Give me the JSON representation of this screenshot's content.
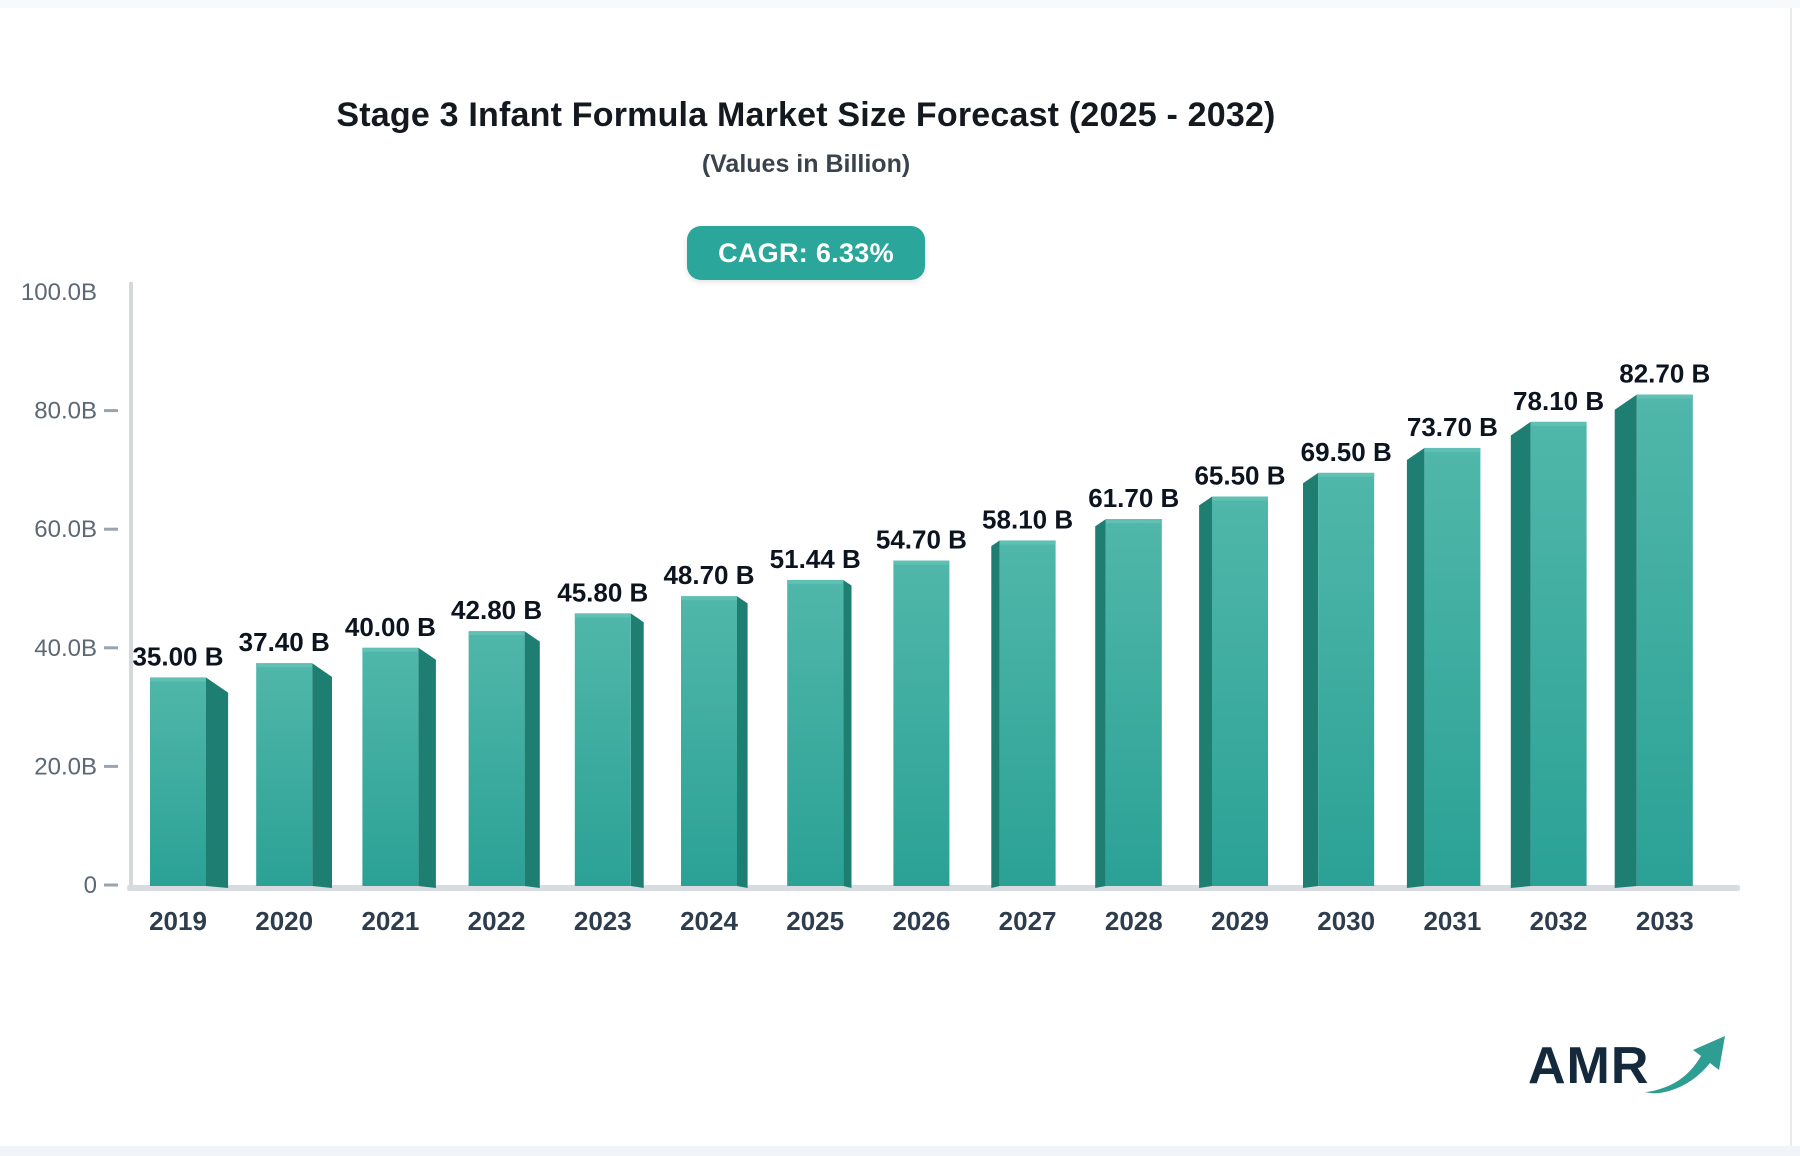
{
  "header": {
    "title": "Stage 3 Infant Formula Market Size Forecast (2025 - 2032)",
    "subtitle": "(Values in Billion)"
  },
  "badge": {
    "label": "CAGR: 6.33%",
    "background": "#2aa79a",
    "text_color": "#ffffff"
  },
  "chart_data": {
    "type": "bar",
    "title": "Stage 3 Infant Formula Market Size Forecast (2025 - 2032)",
    "subtitle": "(Values in Billion)",
    "categories": [
      "2019",
      "2020",
      "2021",
      "2022",
      "2023",
      "2024",
      "2025",
      "2026",
      "2027",
      "2028",
      "2029",
      "2030",
      "2031",
      "2032",
      "2033"
    ],
    "values": [
      35.0,
      37.4,
      40.0,
      42.8,
      45.8,
      48.7,
      51.44,
      54.7,
      58.1,
      61.7,
      65.5,
      69.5,
      73.7,
      78.1,
      82.7
    ],
    "value_labels": [
      "35.00 B",
      "37.40 B",
      "40.00 B",
      "42.80 B",
      "45.80 B",
      "48.70 B",
      "51.44 B",
      "54.70 B",
      "58.10 B",
      "61.70 B",
      "65.50 B",
      "69.50 B",
      "73.70 B",
      "78.10 B",
      "82.70 B"
    ],
    "unit": "Billion",
    "ylim": [
      0,
      100
    ],
    "y_tick_labels": [
      "100.0B",
      "80.0B",
      "60.0B",
      "40.0B",
      "20.0B",
      "0"
    ],
    "y_tick_values": [
      100,
      80,
      60,
      40,
      20,
      0
    ],
    "grid": false,
    "legend_position": "none",
    "colors": {
      "bar_front_top": "#50b7aa",
      "bar_front_bottom": "#2ba195",
      "bar_side": "#1f7e72",
      "bar_top_highlight": "#5fc0b3",
      "axis_line": "#d5d9de",
      "baseline": "#d8dce1",
      "tick_dash": "#9aa4af",
      "y_label": "#5d6876",
      "x_label": "#2e3d4d",
      "value_label": "#0c1420"
    }
  },
  "logo": {
    "text": "AMR",
    "color": "#15293c",
    "arrow_color": "#2e9d92"
  }
}
